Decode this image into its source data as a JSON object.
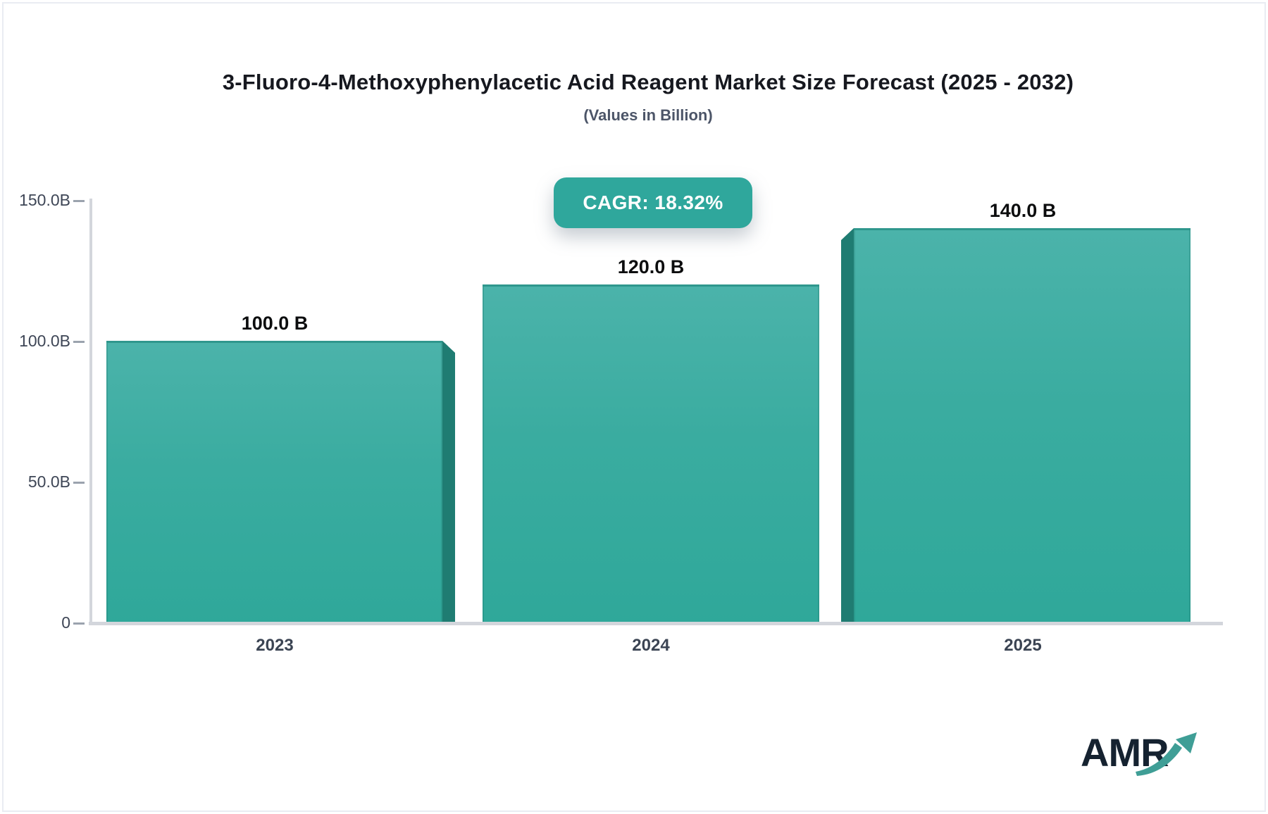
{
  "title": "3-Fluoro-4-Methoxyphenylacetic Acid Reagent Market Size Forecast (2025 - 2032)",
  "subtitle": "(Values in Billion)",
  "badge": {
    "label": "CAGR: 18.32%"
  },
  "chart_data": {
    "type": "bar",
    "title": "3-Fluoro-4-Methoxyphenylacetic Acid Reagent Market Size Forecast (2025 - 2032)",
    "subtitle": "(Values in Billion)",
    "categories": [
      "2023",
      "2024",
      "2025"
    ],
    "values": [
      100.0,
      120.0,
      140.0
    ],
    "unit": "Billion",
    "bar_labels": [
      "100.0 B",
      "120.0 B",
      "140.0 B"
    ],
    "cagr": "18.32%",
    "xlabel": "",
    "ylabel": "",
    "ylim": [
      0,
      150
    ],
    "y_ticks": [
      "150.0B",
      "100.0B",
      "50.0B",
      "0"
    ],
    "y_tick_values": [
      150,
      100,
      50,
      0
    ],
    "grid": false,
    "legend": "none",
    "colors": {
      "bar_gradient_top": "#4bb3aa",
      "bar_gradient_bottom": "#2fa89a",
      "bar_side_3d": "#1f7c72",
      "bar_top_edge": "#2f978d",
      "badge_background": "#2fa79c",
      "badge_text": "#ffffff",
      "axis_line": "#d3d6dc",
      "tick_text": "#3e4656",
      "value_text": "#0c0d0e",
      "title_text": "#16181f",
      "subtitle_text": "#4c5568"
    }
  },
  "logo": {
    "text": "AMR",
    "arrow_color": "#3f9e96",
    "text_color": "#152230"
  }
}
